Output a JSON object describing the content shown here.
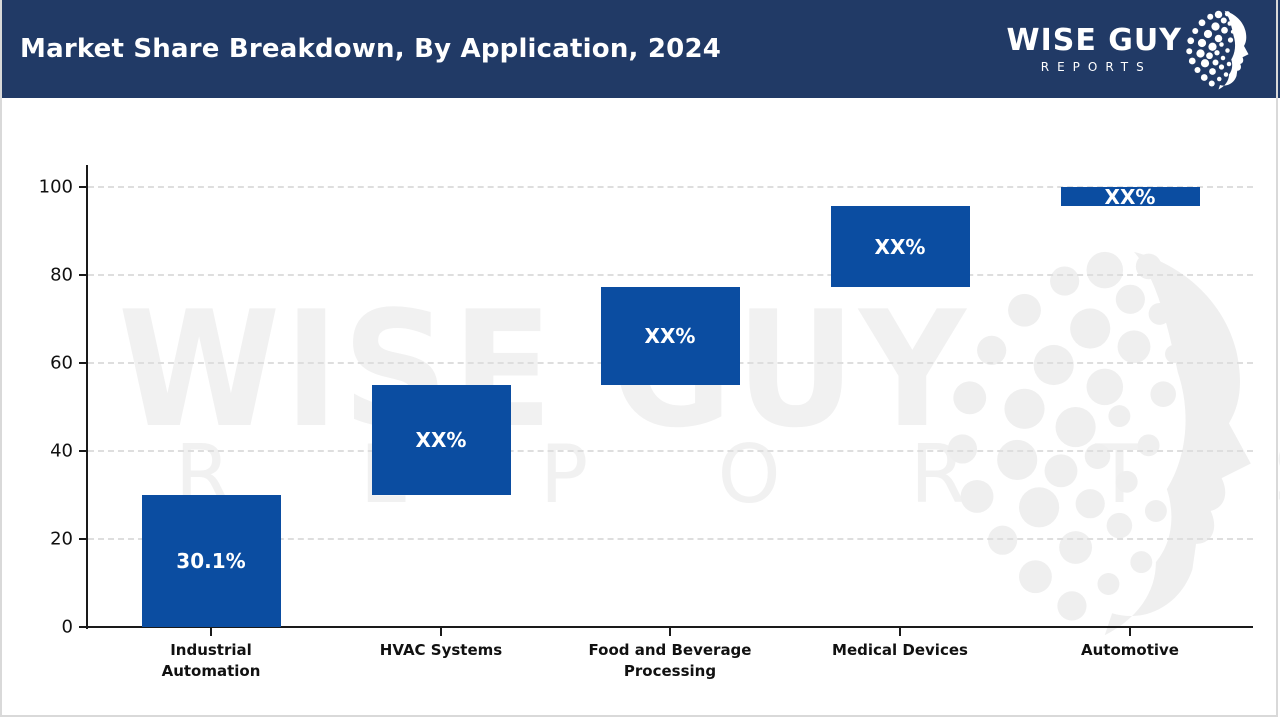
{
  "header": {
    "title": "Market Share Breakdown, By Application, 2024",
    "logo": {
      "wordmark": "WISE GUY",
      "subtext": "REPORTS"
    }
  },
  "watermark": {
    "wordmark": "WISE GUY",
    "subtext": "REPORTS"
  },
  "colors": {
    "header_bg": "#213a66",
    "bar": "#0b4da1",
    "bar_label": "#ffffff",
    "grid": "#dedede",
    "axis": "#1a1a1a",
    "watermark": "#f1f1f1"
  },
  "chart_data": {
    "type": "bar",
    "subtype": "waterfall",
    "title": "Market Share Breakdown, By Application, 2024",
    "categories": [
      [
        "Industrial",
        "Automation"
      ],
      [
        "HVAC Systems"
      ],
      [
        "Food and Beverage",
        "Processing"
      ],
      [
        "Medical Devices"
      ],
      [
        "Automotive"
      ]
    ],
    "segments": [
      {
        "start": 0,
        "end": 30.1,
        "label": "30.1%"
      },
      {
        "start": 30.1,
        "end": 55.0,
        "label": "XX%"
      },
      {
        "start": 55.0,
        "end": 77.3,
        "label": "XX%"
      },
      {
        "start": 77.3,
        "end": 95.6,
        "label": "XX%"
      },
      {
        "start": 95.6,
        "end": 100.0,
        "label": "XX%"
      }
    ],
    "ylabel": "",
    "xlabel": "",
    "yticks": [
      0,
      20,
      40,
      60,
      80,
      100
    ],
    "ylim": [
      0,
      105
    ],
    "grid": "horizontal-dashed",
    "legend": "none"
  }
}
